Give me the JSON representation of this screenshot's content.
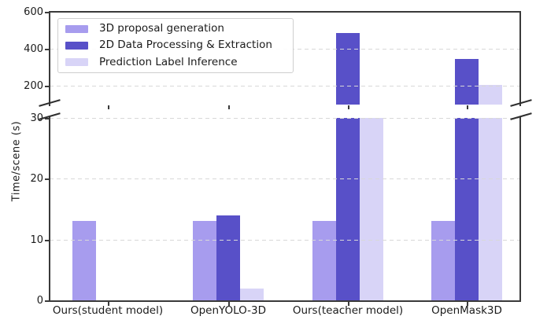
{
  "chart_data": {
    "type": "bar",
    "title": "",
    "ylabel": "Time/scene (s)",
    "categories": [
      "Ours(student model)",
      "OpenYOLO-3D",
      "Ours(teacher model)",
      "OpenMask3D"
    ],
    "series": [
      {
        "name": "3D proposal generation",
        "color": "#a79cee",
        "values": [
          13,
          13,
          13,
          13
        ]
      },
      {
        "name": "2D Data Processing & Extraction",
        "color": "#5850c8",
        "values": [
          0,
          14,
          485,
          345
        ]
      },
      {
        "name": "Prediction Label Inference",
        "color": "#d8d4f7",
        "values": [
          0,
          2,
          60,
          205
        ]
      }
    ],
    "axis_break": {
      "lower_panel_range": [
        0,
        30
      ],
      "upper_panel_range": [
        100,
        600
      ],
      "note": "y-axis broken between 30 and 100; bars taller than 30 are clipped at the break in the lower panel"
    },
    "yticks_lower": [
      0,
      10,
      20,
      30
    ],
    "yticks_upper": [
      200,
      400,
      600
    ],
    "gridlines_lower": [
      10,
      20,
      30
    ],
    "gridlines_upper": [
      200,
      400
    ],
    "grid_style": "dashed horizontal, drawn over bars",
    "legend_position": "upper left",
    "colors": {
      "grid": "#d8d8d8",
      "spine": "#3a3a3a",
      "text": "#1b1b1b",
      "legend_border": "#cfcfcf"
    }
  }
}
